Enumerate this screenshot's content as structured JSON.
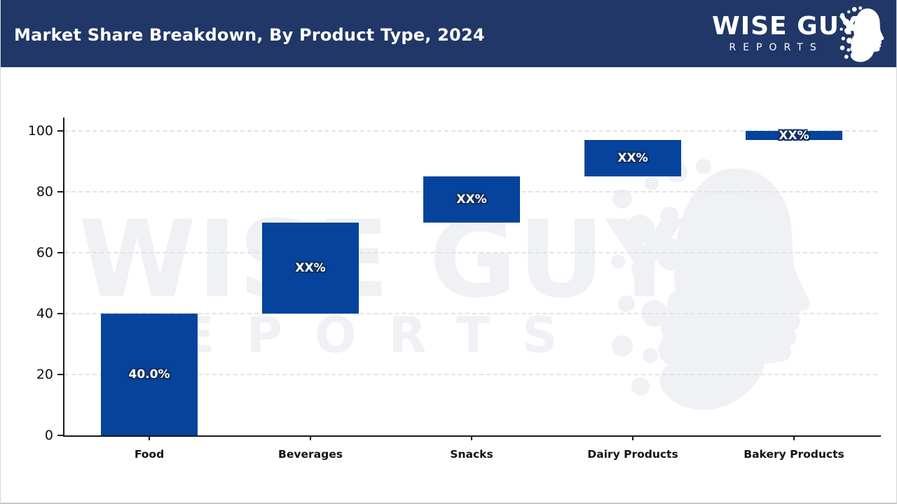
{
  "header": {
    "title": "Market Share Breakdown, By Product Type, 2024",
    "logo_line1": "WISE GUY",
    "logo_line2": "REPORTS"
  },
  "watermark": {
    "line1": "WISE GUY",
    "line2": "REPORTS"
  },
  "colors": {
    "header_bg": "#203767",
    "bar": "#05439c",
    "bar_label": "#ffffff",
    "bar_label_outline": "#12305f",
    "grid": "#e2e2e2",
    "axis": "#1a1a1a",
    "watermark": "#f0f1f4"
  },
  "chart_data": {
    "type": "bar",
    "subtype": "waterfall",
    "title": "Market Share Breakdown, By Product Type, 2024",
    "categories": [
      "Food",
      "Beverages",
      "Snacks",
      "Dairy Products",
      "Bakery Products"
    ],
    "segments": [
      {
        "category": "Food",
        "start": 0,
        "end": 40,
        "label": "40.0%"
      },
      {
        "category": "Beverages",
        "start": 40,
        "end": 70,
        "label": "XX%"
      },
      {
        "category": "Snacks",
        "start": 70,
        "end": 85,
        "label": "XX%"
      },
      {
        "category": "Dairy Products",
        "start": 85,
        "end": 97,
        "label": "XX%"
      },
      {
        "category": "Bakery Products",
        "start": 97,
        "end": 100,
        "label": "XX%"
      }
    ],
    "yticks": [
      0,
      20,
      40,
      60,
      80,
      100
    ],
    "ylim": [
      0,
      104.5
    ],
    "xlabel": "",
    "ylabel": "",
    "grid": "horizontal-dashed",
    "legend": "none"
  }
}
